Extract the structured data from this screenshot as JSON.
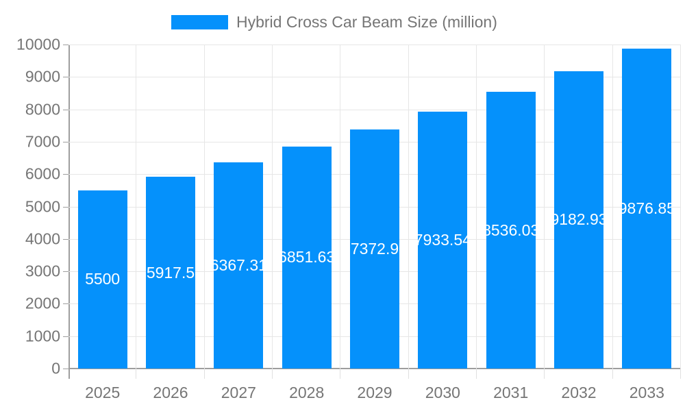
{
  "legend": {
    "label": "Hybrid Cross Car Beam Size (million)"
  },
  "colors": {
    "bar": "#0591FB",
    "bar_label": "#FFFFFF",
    "axis_text": "#757575",
    "grid": "#E6E6E6",
    "axis_line": "#9E9E9E",
    "background": "#FFFFFF"
  },
  "chart_data": {
    "type": "bar",
    "title": "Hybrid Cross Car Beam Size (million)",
    "categories": [
      "2025",
      "2026",
      "2027",
      "2028",
      "2029",
      "2030",
      "2031",
      "2032",
      "2033"
    ],
    "values": [
      5500,
      5917.5,
      6367.31,
      6851.63,
      7372.9,
      7933.54,
      8536.03,
      9182.93,
      9876.85
    ],
    "value_labels": [
      "5500",
      "5917.5",
      "6367.31",
      "6851.63",
      "7372.9",
      "7933.54",
      "8536.03",
      "9182.93",
      "9876.85"
    ],
    "xlabel": "",
    "ylabel": "",
    "ylim": [
      0,
      10000
    ],
    "ytick_step": 1000,
    "ytick_labels": [
      "0",
      "1000",
      "2000",
      "3000",
      "4000",
      "5000",
      "6000",
      "7000",
      "8000",
      "9000",
      "10000"
    ],
    "grid": true,
    "legend_position": "top",
    "bar_labels_inside": true
  }
}
